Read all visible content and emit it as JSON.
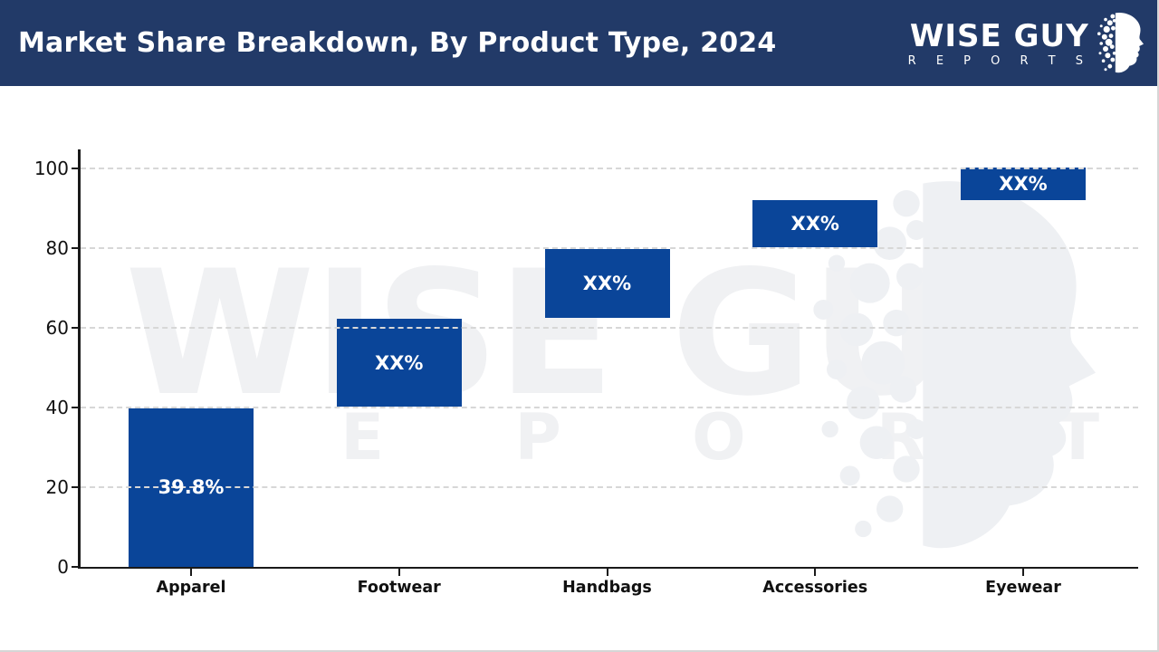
{
  "header": {
    "title": "Market Share Breakdown, By Product Type, 2024",
    "brand_line1": "WISE GUY",
    "brand_line2": "R E P O R T S",
    "bg_color": "#223a68",
    "text_color": "#ffffff"
  },
  "watermark": {
    "line1": "WISE GU",
    "line2": "R E P O R T S"
  },
  "chart_data": {
    "type": "bar",
    "subtype": "waterfall-style segmented market-share bars",
    "title": "Market Share Breakdown, By Product Type, 2024",
    "categories": [
      "Apparel",
      "Footwear",
      "Handbags",
      "Accessories",
      "Eyewear"
    ],
    "series": [
      {
        "name": "Market share (%)",
        "segments": [
          {
            "category": "Apparel",
            "start": 0,
            "end": 39.8,
            "label": "39.8%"
          },
          {
            "category": "Footwear",
            "start": 40.2,
            "end": 62.3,
            "label": "XX%"
          },
          {
            "category": "Handbags",
            "start": 62.6,
            "end": 79.8,
            "label": "XX%"
          },
          {
            "category": "Accessories",
            "start": 80.2,
            "end": 92.0,
            "label": "XX%"
          },
          {
            "category": "Eyewear",
            "start": 92.0,
            "end": 100.2,
            "label": "XX%"
          }
        ]
      }
    ],
    "y_ticks": [
      0,
      20,
      40,
      60,
      80,
      100
    ],
    "ylim": [
      0,
      104.8
    ],
    "xlabel": "",
    "ylabel": "",
    "grid": "horizontal-dashed",
    "legend": "none",
    "bar_color": "#0a4599",
    "bar_label_color": "#ffffff"
  }
}
